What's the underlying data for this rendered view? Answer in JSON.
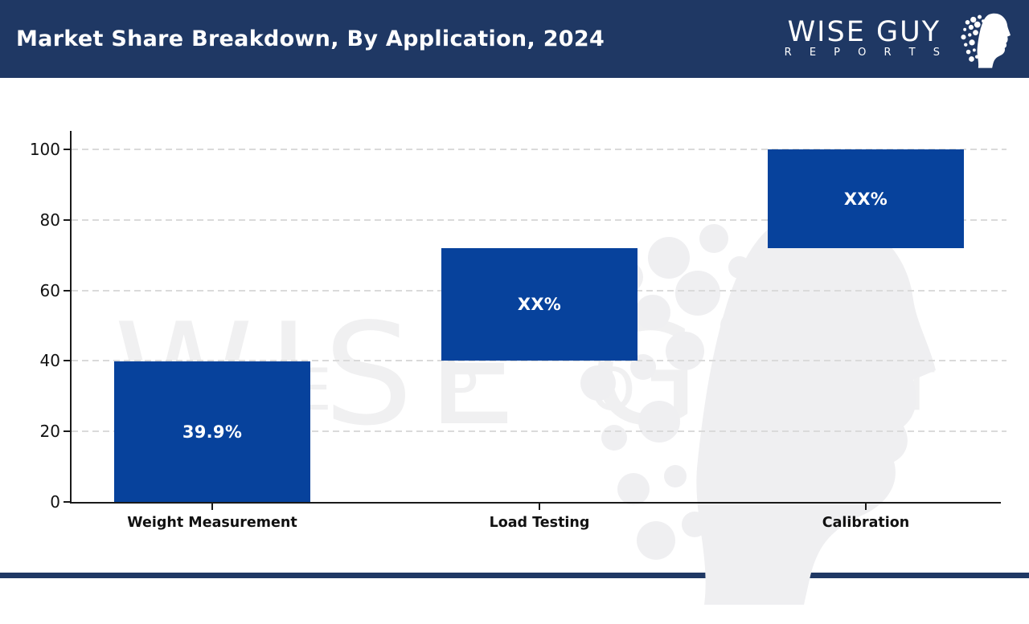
{
  "header": {
    "title": "Market Share Breakdown, By Application, 2024",
    "brand_line1": "WISE GUY",
    "brand_line2": "R E P O R T S"
  },
  "watermark": {
    "line1": "WISE GUY",
    "line2": "R E P O R T S"
  },
  "icons": {
    "brand_head": "wiseguy-dotted-head-icon",
    "watermark_head": "wiseguy-dotted-head-watermark-icon"
  },
  "colors": {
    "header_bg": "#1f3864",
    "footer_bg": "#1f3864",
    "bar": "#07429c",
    "bar_label": "#ffffff",
    "grid": "#dadada",
    "axis": "#1a1a1a",
    "watermark": "#f0f0f1"
  },
  "chart_data": {
    "type": "bar",
    "subtype": "floating-segment-breakdown",
    "title": "Market Share Breakdown, By Application, 2024",
    "categories": [
      "Weight Measurement",
      "Load Testing",
      "Calibration"
    ],
    "series": [
      {
        "name": "Market Share",
        "segments": [
          {
            "category": "Weight Measurement",
            "start": 0,
            "end": 39.9,
            "label": "39.9%"
          },
          {
            "category": "Load Testing",
            "start": 40,
            "end": 72,
            "label": "XX%"
          },
          {
            "category": "Calibration",
            "start": 72,
            "end": 100,
            "label": "XX%"
          }
        ]
      }
    ],
    "xlabel": "",
    "ylabel": "",
    "ylim": [
      0,
      100
    ],
    "yticks": [
      0,
      20,
      40,
      60,
      80,
      100
    ],
    "grid": "horizontal-dashed",
    "legend": "none"
  }
}
